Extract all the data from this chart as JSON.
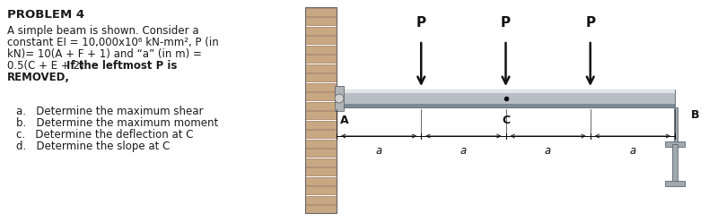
{
  "title": "PROBLEM 4",
  "line1": "A simple beam is shown. Consider a",
  "line2": "constant EI = 10,000x10⁶ kN-mm², P (in",
  "line3": "kN)= 10(A + F + 1) and “a” (in m) =",
  "line4_normal": "0.5(C + E + 2). ",
  "line4_bold": "If the leftmost P is",
  "line5_bold": "REMOVED,",
  "item_a": "a.   Determine the maximum shear",
  "item_b": "b.   Determine the maximum moment",
  "item_c": "c.   Determine the deflection at C",
  "item_d": "d.   Determine the slope at C",
  "bg_color": "#ffffff",
  "text_color": "#1a1a1a",
  "wall_color_light": "#c8a882",
  "wall_color_dark": "#8b5e3c",
  "wall_mortar": "#d0c0a8",
  "beam_color_mid": "#b8bec4",
  "beam_color_top": "#e0e4e8",
  "beam_color_bot": "#7a8a96",
  "beam_edge": "#707880",
  "support_color": "#a0a8b0",
  "support_edge": "#606870"
}
